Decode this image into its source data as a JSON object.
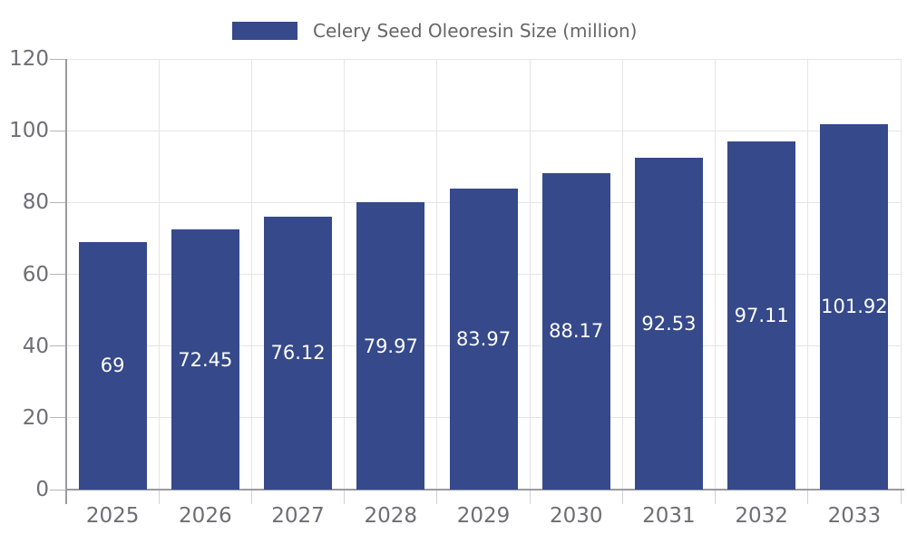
{
  "chart": {
    "legend": {
      "label": "Celery Seed Oleoresin Size (million)"
    },
    "colors": {
      "bar": "#35498B",
      "axis_line": "#9a9a9f",
      "grid_line": "#e5e5e8",
      "tick_mark": "#b5b5ba",
      "tick_text": "#6e6e73",
      "legend_text": "#666666",
      "value_text": "#ffffff",
      "background": "#ffffff"
    },
    "chart_data": {
      "type": "bar",
      "title": "",
      "series_name": "Celery Seed Oleoresin Size (million)",
      "categories": [
        "2025",
        "2026",
        "2027",
        "2028",
        "2029",
        "2030",
        "2031",
        "2032",
        "2033"
      ],
      "values": [
        69,
        72.45,
        76.12,
        79.97,
        83.97,
        88.17,
        92.53,
        97.11,
        101.92
      ],
      "value_labels": [
        "69",
        "72.45",
        "76.12",
        "79.97",
        "83.97",
        "88.17",
        "92.53",
        "97.11",
        "101.92"
      ],
      "xlabel": "",
      "ylabel": "",
      "ylim": [
        0,
        120
      ],
      "ytick_step": 20,
      "ytick_labels": [
        "0",
        "20",
        "40",
        "60",
        "80",
        "100",
        "120"
      ],
      "grid": true,
      "legend_position": "top",
      "value_label_position": "inside-center"
    }
  }
}
